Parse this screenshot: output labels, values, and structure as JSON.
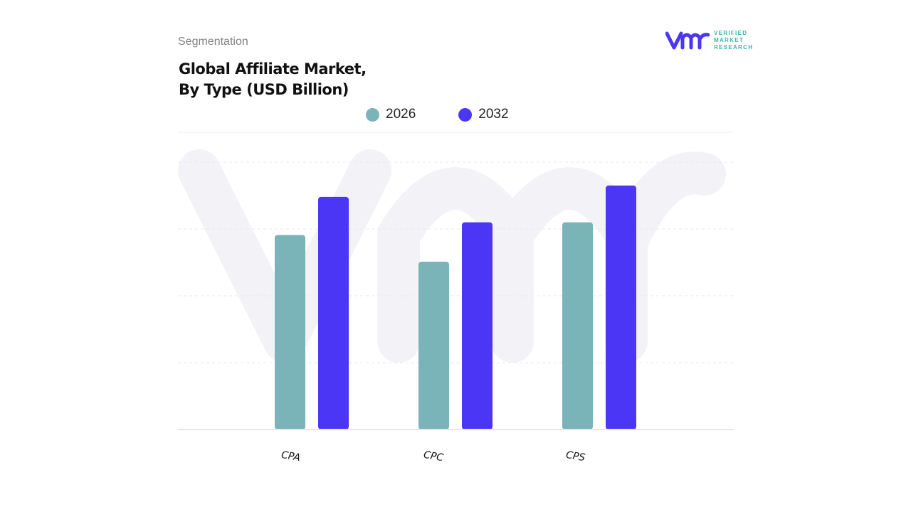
{
  "header": {
    "segment_label": "Segmentation",
    "title_line1": "Global Affiliate Market,",
    "title_line2": "By Type (USD Billion)"
  },
  "logo": {
    "line1": "VERIFIED",
    "line2": "MARKET",
    "line3": "RESEARCH",
    "mark": "vmr"
  },
  "chart_data": {
    "type": "bar",
    "title": "Global Affiliate Market, By Type (USD Billion)",
    "categories": [
      "CPA",
      "CPC",
      "CPS"
    ],
    "series": [
      {
        "name": "2026",
        "color": "#7ab3b8",
        "values": [
          2.91,
          2.51,
          3.1
        ]
      },
      {
        "name": "2032",
        "color": "#4b36f5",
        "values": [
          3.48,
          3.1,
          3.65
        ]
      }
    ],
    "ylim": [
      0,
      4
    ],
    "y_tick_labels_shown": false,
    "grid": true,
    "legend": "top"
  }
}
